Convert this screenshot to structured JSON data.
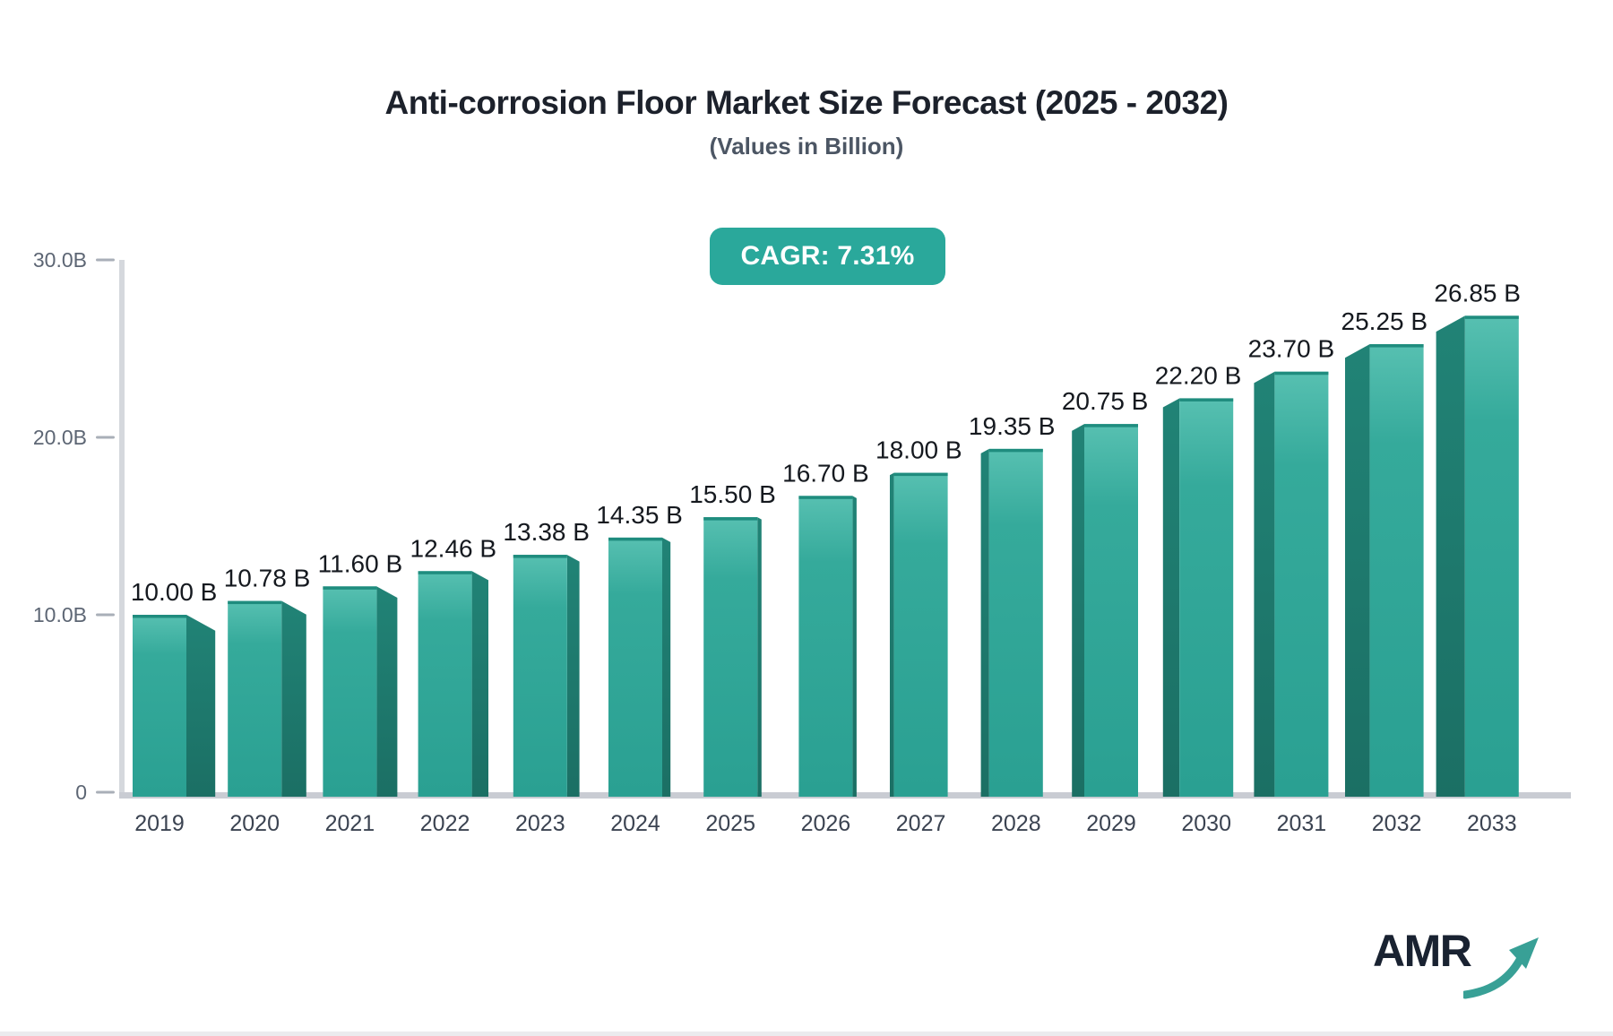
{
  "header": {
    "title": "Anti-corrosion Floor Market Size Forecast (2025 - 2032)",
    "subtitle": "(Values in Billion)",
    "cagr_label": "CAGR: 7.31%"
  },
  "chart_data": {
    "type": "bar",
    "title": "Anti-corrosion Floor Market Size Forecast (2025 - 2032)",
    "subtitle": "(Values in Billion)",
    "cagr": "7.31%",
    "categories": [
      "2019",
      "2020",
      "2021",
      "2022",
      "2023",
      "2024",
      "2025",
      "2026",
      "2027",
      "2028",
      "2029",
      "2030",
      "2031",
      "2032",
      "2033"
    ],
    "values": [
      10.0,
      10.78,
      11.6,
      12.46,
      13.38,
      14.35,
      15.5,
      16.7,
      18.0,
      19.35,
      20.75,
      22.2,
      23.7,
      25.25,
      26.85
    ],
    "value_labels": [
      "10.00 B",
      "10.78 B",
      "11.60 B",
      "12.46 B",
      "13.38 B",
      "14.35 B",
      "15.50 B",
      "16.70 B",
      "18.00 B",
      "19.35 B",
      "20.75 B",
      "22.20 B",
      "23.70 B",
      "25.25 B",
      "26.85 B"
    ],
    "xlabel": "",
    "ylabel": "",
    "ylim": [
      0,
      30
    ],
    "yticks": [
      {
        "value": 0,
        "label": "0"
      },
      {
        "value": 10,
        "label": "10.0B"
      },
      {
        "value": 20,
        "label": "20.0B"
      },
      {
        "value": 30,
        "label": "30.0B"
      }
    ],
    "grid": false,
    "legend": false,
    "colors": {
      "bar_front_top": "#57c0b1",
      "bar_front_mid": "#35aa9b",
      "bar_front_bottom": "#2aa092",
      "bar_top_edge": "#1f8c7e",
      "bar_side": "#218376",
      "bar_side_dark": "#1b6f64",
      "accent": "#2aa89b",
      "axis_line": "#d5d8dd",
      "baseline": "#c9ccd3",
      "tick": "#a9afb8",
      "y_label": "#5d6674",
      "x_label": "#3b4351",
      "value_label": "#15191f"
    }
  },
  "footer": {
    "logo_text": "AMR"
  }
}
